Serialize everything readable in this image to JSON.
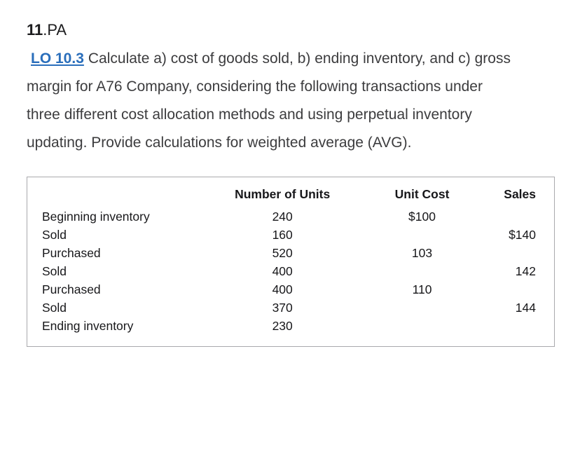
{
  "problem": {
    "number": "11",
    "suffix": ".PA",
    "lo_link_label": "LO 10.3",
    "statement": "Calculate a) cost of goods sold, b) ending inventory, and c) gross margin for A76 Company, considering the following transactions under three different cost allocation methods and using perpetual inventory updating. Provide calculations for weighted average (AVG)."
  },
  "link_color": "#2a6ebb",
  "table": {
    "headers": {
      "label": "",
      "units": "Number of Units",
      "unit_cost": "Unit Cost",
      "sales": "Sales"
    },
    "rows": [
      {
        "label": "Beginning inventory",
        "units": "240",
        "unit_cost": "$100",
        "sales": ""
      },
      {
        "label": "Sold",
        "units": "160",
        "unit_cost": "",
        "sales": "$140"
      },
      {
        "label": "Purchased",
        "units": "520",
        "unit_cost": "103",
        "sales": ""
      },
      {
        "label": "Sold",
        "units": "400",
        "unit_cost": "",
        "sales": "142"
      },
      {
        "label": "Purchased",
        "units": "400",
        "unit_cost": "110",
        "sales": ""
      },
      {
        "label": "Sold",
        "units": "370",
        "unit_cost": "",
        "sales": "144"
      },
      {
        "label": "Ending inventory",
        "units": "230",
        "unit_cost": "",
        "sales": ""
      }
    ]
  }
}
